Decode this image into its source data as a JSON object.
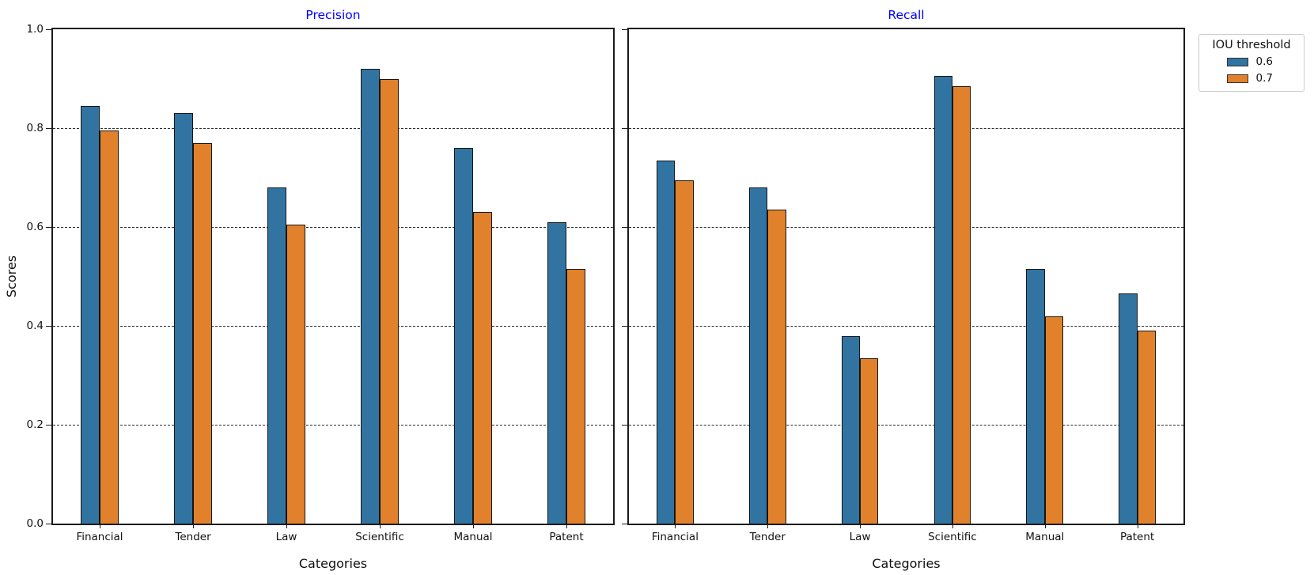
{
  "figure": {
    "background": "#ffffff",
    "title_color": "#0000ff",
    "ylabel": "Scores",
    "xlabel": "Categories",
    "categories": [
      "Financial",
      "Tender",
      "Law",
      "Scientific",
      "Manual",
      "Patent"
    ],
    "ytick_labels": [
      "0.0",
      "0.2",
      "0.4",
      "0.6",
      "0.8",
      "1.0"
    ]
  },
  "legend": {
    "title": "IOU threshold",
    "entries": [
      {
        "label": "0.6",
        "color": "#3274a1"
      },
      {
        "label": "0.7",
        "color": "#e1812c"
      }
    ]
  },
  "chart_data": [
    {
      "type": "bar",
      "title": "Precision",
      "xlabel": "Categories",
      "ylabel": "Scores",
      "ylim": [
        0.0,
        1.0
      ],
      "yticks": [
        0.0,
        0.2,
        0.4,
        0.6,
        0.8,
        1.0
      ],
      "grid": "horizontal dashed lines at 0.2 intervals",
      "legend_position": "outside upper right of figure",
      "categories": [
        "Financial",
        "Tender",
        "Law",
        "Scientific",
        "Manual",
        "Patent"
      ],
      "series": [
        {
          "name": "0.6",
          "color": "#3274a1",
          "values": [
            0.845,
            0.83,
            0.68,
            0.92,
            0.76,
            0.61
          ]
        },
        {
          "name": "0.7",
          "color": "#e1812c",
          "values": [
            0.795,
            0.77,
            0.605,
            0.9,
            0.63,
            0.515
          ]
        }
      ]
    },
    {
      "type": "bar",
      "title": "Recall",
      "xlabel": "Categories",
      "ylabel": "",
      "ylim": [
        0.0,
        1.0
      ],
      "yticks": [
        0.0,
        0.2,
        0.4,
        0.6,
        0.8,
        1.0
      ],
      "grid": "horizontal dashed lines at 0.2 intervals",
      "legend_position": "outside upper right of figure",
      "categories": [
        "Financial",
        "Tender",
        "Law",
        "Scientific",
        "Manual",
        "Patent"
      ],
      "series": [
        {
          "name": "0.6",
          "color": "#3274a1",
          "values": [
            0.735,
            0.68,
            0.38,
            0.905,
            0.515,
            0.465
          ]
        },
        {
          "name": "0.7",
          "color": "#e1812c",
          "values": [
            0.695,
            0.635,
            0.335,
            0.885,
            0.42,
            0.39
          ]
        }
      ]
    }
  ]
}
